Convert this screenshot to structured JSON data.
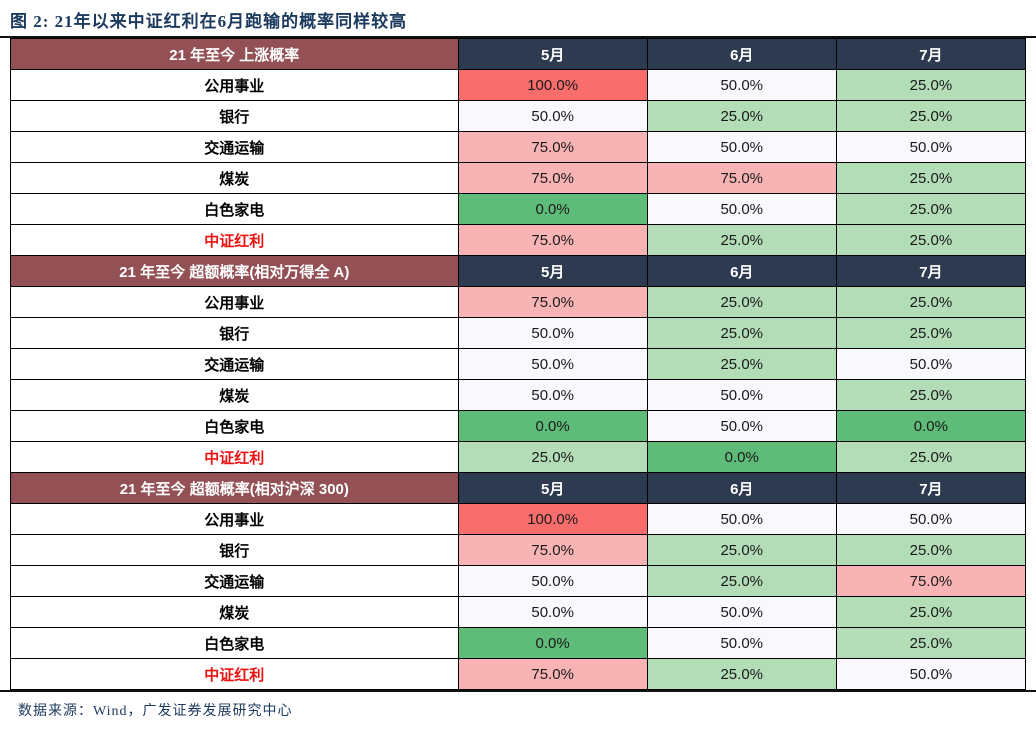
{
  "figure": {
    "title": "图 2: 21年以来中证红利在6月跑输的概率同样较高",
    "source": "数据来源：Wind，广发证券发展研究中心"
  },
  "colors": {
    "title_text": "#1C3A5E",
    "section_header_bg": "#935155",
    "month_header_bg": "#2E3A50",
    "header_text": "#FFFFFF",
    "highlight_label_text": "#EE1111",
    "rule": "#111111",
    "border": "#000000",
    "value_fill": {
      "100": "#FA6D6D",
      "75": "#F8B4B4",
      "50": "#F9F9FD",
      "25": "#B2DDB6",
      "0": "#5EBB78"
    }
  },
  "chart_data": {
    "type": "table",
    "title": "图 2: 21年以来中证红利在6月跑输的概率同样较高",
    "columns": [
      "5月",
      "6月",
      "7月"
    ],
    "sections": [
      {
        "header": "21 年至今 上涨概率",
        "rows": [
          {
            "label": "公用事业",
            "highlight": false,
            "values": [
              "100.0%",
              "50.0%",
              "25.0%"
            ]
          },
          {
            "label": "银行",
            "highlight": false,
            "values": [
              "50.0%",
              "25.0%",
              "25.0%"
            ]
          },
          {
            "label": "交通运输",
            "highlight": false,
            "values": [
              "75.0%",
              "50.0%",
              "50.0%"
            ]
          },
          {
            "label": "煤炭",
            "highlight": false,
            "values": [
              "75.0%",
              "75.0%",
              "25.0%"
            ]
          },
          {
            "label": "白色家电",
            "highlight": false,
            "values": [
              "0.0%",
              "50.0%",
              "25.0%"
            ]
          },
          {
            "label": "中证红利",
            "highlight": true,
            "values": [
              "75.0%",
              "25.0%",
              "25.0%"
            ]
          }
        ]
      },
      {
        "header": "21 年至今 超额概率(相对万得全 A)",
        "rows": [
          {
            "label": "公用事业",
            "highlight": false,
            "values": [
              "75.0%",
              "25.0%",
              "25.0%"
            ]
          },
          {
            "label": "银行",
            "highlight": false,
            "values": [
              "50.0%",
              "25.0%",
              "25.0%"
            ]
          },
          {
            "label": "交通运输",
            "highlight": false,
            "values": [
              "50.0%",
              "25.0%",
              "50.0%"
            ]
          },
          {
            "label": "煤炭",
            "highlight": false,
            "values": [
              "50.0%",
              "50.0%",
              "25.0%"
            ]
          },
          {
            "label": "白色家电",
            "highlight": false,
            "values": [
              "0.0%",
              "50.0%",
              "0.0%"
            ]
          },
          {
            "label": "中证红利",
            "highlight": true,
            "values": [
              "25.0%",
              "0.0%",
              "25.0%"
            ]
          }
        ]
      },
      {
        "header": "21 年至今 超额概率(相对沪深 300)",
        "rows": [
          {
            "label": "公用事业",
            "highlight": false,
            "values": [
              "100.0%",
              "50.0%",
              "50.0%"
            ]
          },
          {
            "label": "银行",
            "highlight": false,
            "values": [
              "75.0%",
              "25.0%",
              "25.0%"
            ]
          },
          {
            "label": "交通运输",
            "highlight": false,
            "values": [
              "50.0%",
              "25.0%",
              "75.0%"
            ]
          },
          {
            "label": "煤炭",
            "highlight": false,
            "values": [
              "50.0%",
              "50.0%",
              "25.0%"
            ]
          },
          {
            "label": "白色家电",
            "highlight": false,
            "values": [
              "0.0%",
              "50.0%",
              "25.0%"
            ]
          },
          {
            "label": "中证红利",
            "highlight": true,
            "values": [
              "75.0%",
              "25.0%",
              "50.0%"
            ]
          }
        ]
      }
    ]
  }
}
